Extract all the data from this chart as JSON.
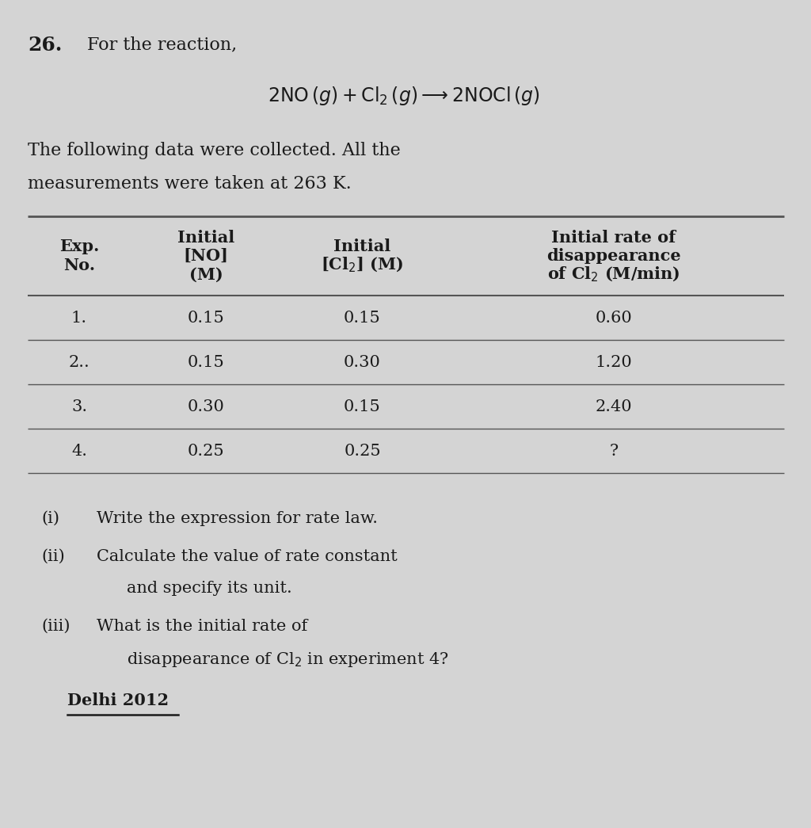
{
  "background_color": "#d4d4d4",
  "question_number": "26.",
  "intro_text": "For the reaction,",
  "text_color": "#1a1a1a",
  "table_line_color": "#555555",
  "font_size_main": 16,
  "font_size_header": 15,
  "font_size_table": 15,
  "font_size_question": 15,
  "font_size_question_number": 18,
  "font_size_footer": 15,
  "table_data": [
    [
      "1.",
      "0.15",
      "0.15",
      "0.60"
    ],
    [
      "2..",
      "0.15",
      "0.30",
      "1.20"
    ],
    [
      "3.",
      "0.30",
      "0.15",
      "2.40"
    ],
    [
      "4.",
      "0.25",
      "0.25",
      "?"
    ]
  ],
  "footer": "Delhi 2012"
}
